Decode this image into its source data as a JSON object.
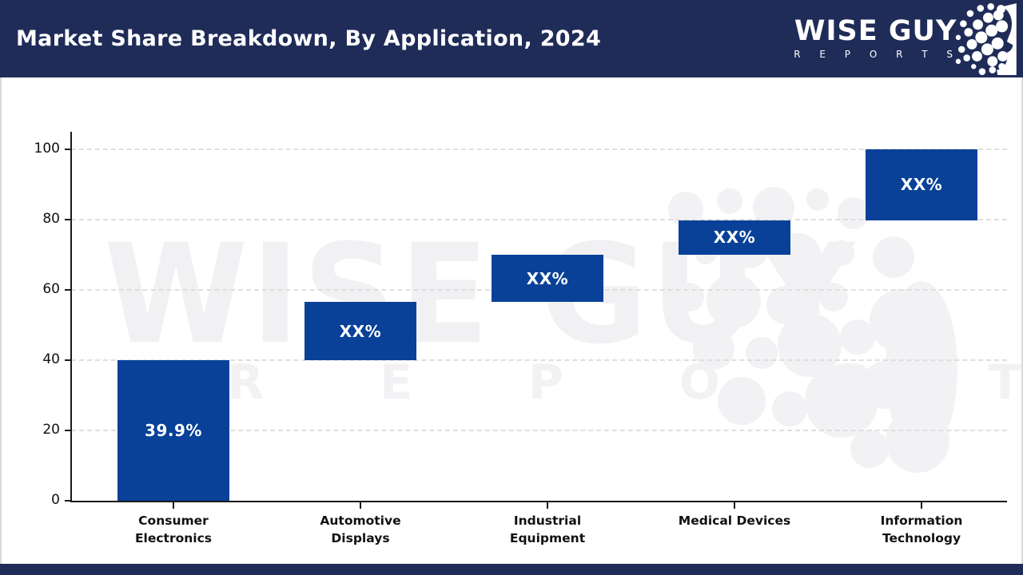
{
  "header": {
    "title": "Market Share Breakdown, By Application, 2024",
    "logo": {
      "word": "WISE GUY",
      "sub": "R E P O R T S"
    }
  },
  "watermark": {
    "line1": "WISE GUY",
    "line2": "R E P O R T S"
  },
  "colors": {
    "header_bg": "#1f2c58",
    "bar_blue": "#084197",
    "grid_gray": "#dedede",
    "bar_label_white": "#ffffff"
  },
  "chart_data": {
    "type": "bar",
    "subtype": "waterfall",
    "title": "Market Share Breakdown, By Application, 2024",
    "categories": [
      "Consumer\nElectronics",
      "Automotive\nDisplays",
      "Industrial\nEquipment",
      "Medical Devices",
      "Information\nTechnology"
    ],
    "segments": [
      {
        "category": "Consumer Electronics",
        "from": 0,
        "to": 39.9,
        "label": "39.9%"
      },
      {
        "category": "Automotive Displays",
        "from": 39.9,
        "to": 56.5,
        "label": "XX%"
      },
      {
        "category": "Industrial Equipment",
        "from": 56.5,
        "to": 70,
        "label": "XX%"
      },
      {
        "category": "Medical Devices",
        "from": 70,
        "to": 79.8,
        "label": "XX%"
      },
      {
        "category": "Information Technology",
        "from": 79.8,
        "to": 100,
        "label": "XX%"
      }
    ],
    "xlabel": "",
    "ylabel": "",
    "ylim": [
      0,
      100
    ],
    "yticks": [
      0,
      20,
      40,
      60,
      80,
      100
    ],
    "grid": "horizontal dashed",
    "legend": "none",
    "bar_color": "#084197",
    "value_label_color": "#ffffff"
  }
}
